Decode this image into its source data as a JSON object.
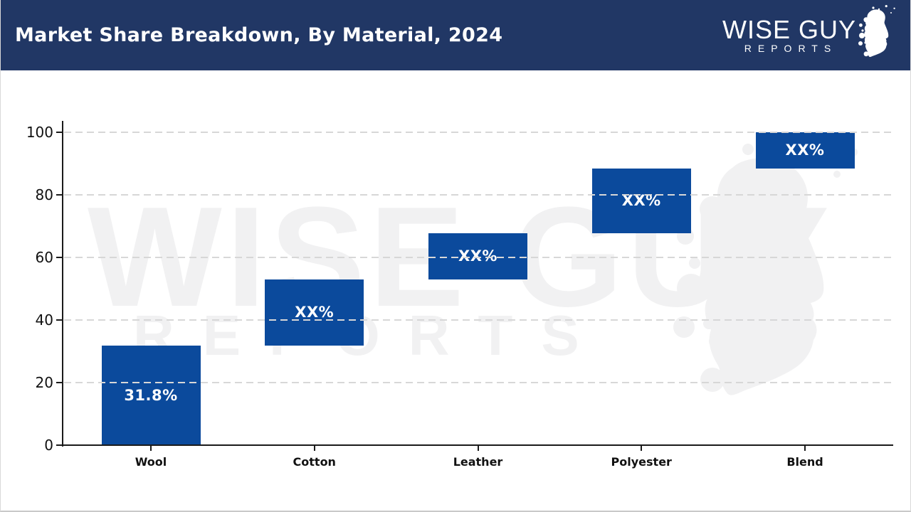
{
  "header": {
    "title": "Market Share Breakdown, By Material, 2024",
    "logo": {
      "wordmark": "WISE GUY",
      "subtitle": "REPORTS"
    }
  },
  "watermark": {
    "wordmark": "WISE GUY",
    "subtitle": "REPORTS"
  },
  "chart_data": {
    "type": "bar",
    "subtype": "waterfall",
    "title": "Market Share Breakdown, By Material, 2024",
    "xlabel": "",
    "ylabel": "",
    "ylim": [
      0,
      100
    ],
    "yticks": [
      0,
      20,
      40,
      60,
      80,
      100
    ],
    "grid": "horizontal-dashed",
    "legend": "none",
    "categories": [
      "Wool",
      "Cotton",
      "Leather",
      "Polyester",
      "Blend"
    ],
    "segments": [
      {
        "category": "Wool",
        "start": 0,
        "end": 31.8,
        "value": 31.8,
        "label": "31.8%"
      },
      {
        "category": "Cotton",
        "start": 31.8,
        "end": 53.0,
        "value": 21.2,
        "label": "XX%"
      },
      {
        "category": "Leather",
        "start": 53.0,
        "end": 67.7,
        "value": 14.7,
        "label": "XX%"
      },
      {
        "category": "Polyester",
        "start": 67.7,
        "end": 88.5,
        "value": 20.8,
        "label": "XX%"
      },
      {
        "category": "Blend",
        "start": 88.5,
        "end": 100.0,
        "value": 11.5,
        "label": "XX%"
      }
    ],
    "bar_color": "#0b4a9c",
    "bar_label_color": "#ffffff"
  },
  "colors": {
    "header_bg": "#213765",
    "header_text": "#ffffff",
    "bar": "#0b4a9c",
    "grid": "#d7d7d7",
    "axis": "#1a1a1a",
    "tick_label": "#111111",
    "watermark": "#f1f1f2",
    "page_bg": "#ffffff"
  }
}
